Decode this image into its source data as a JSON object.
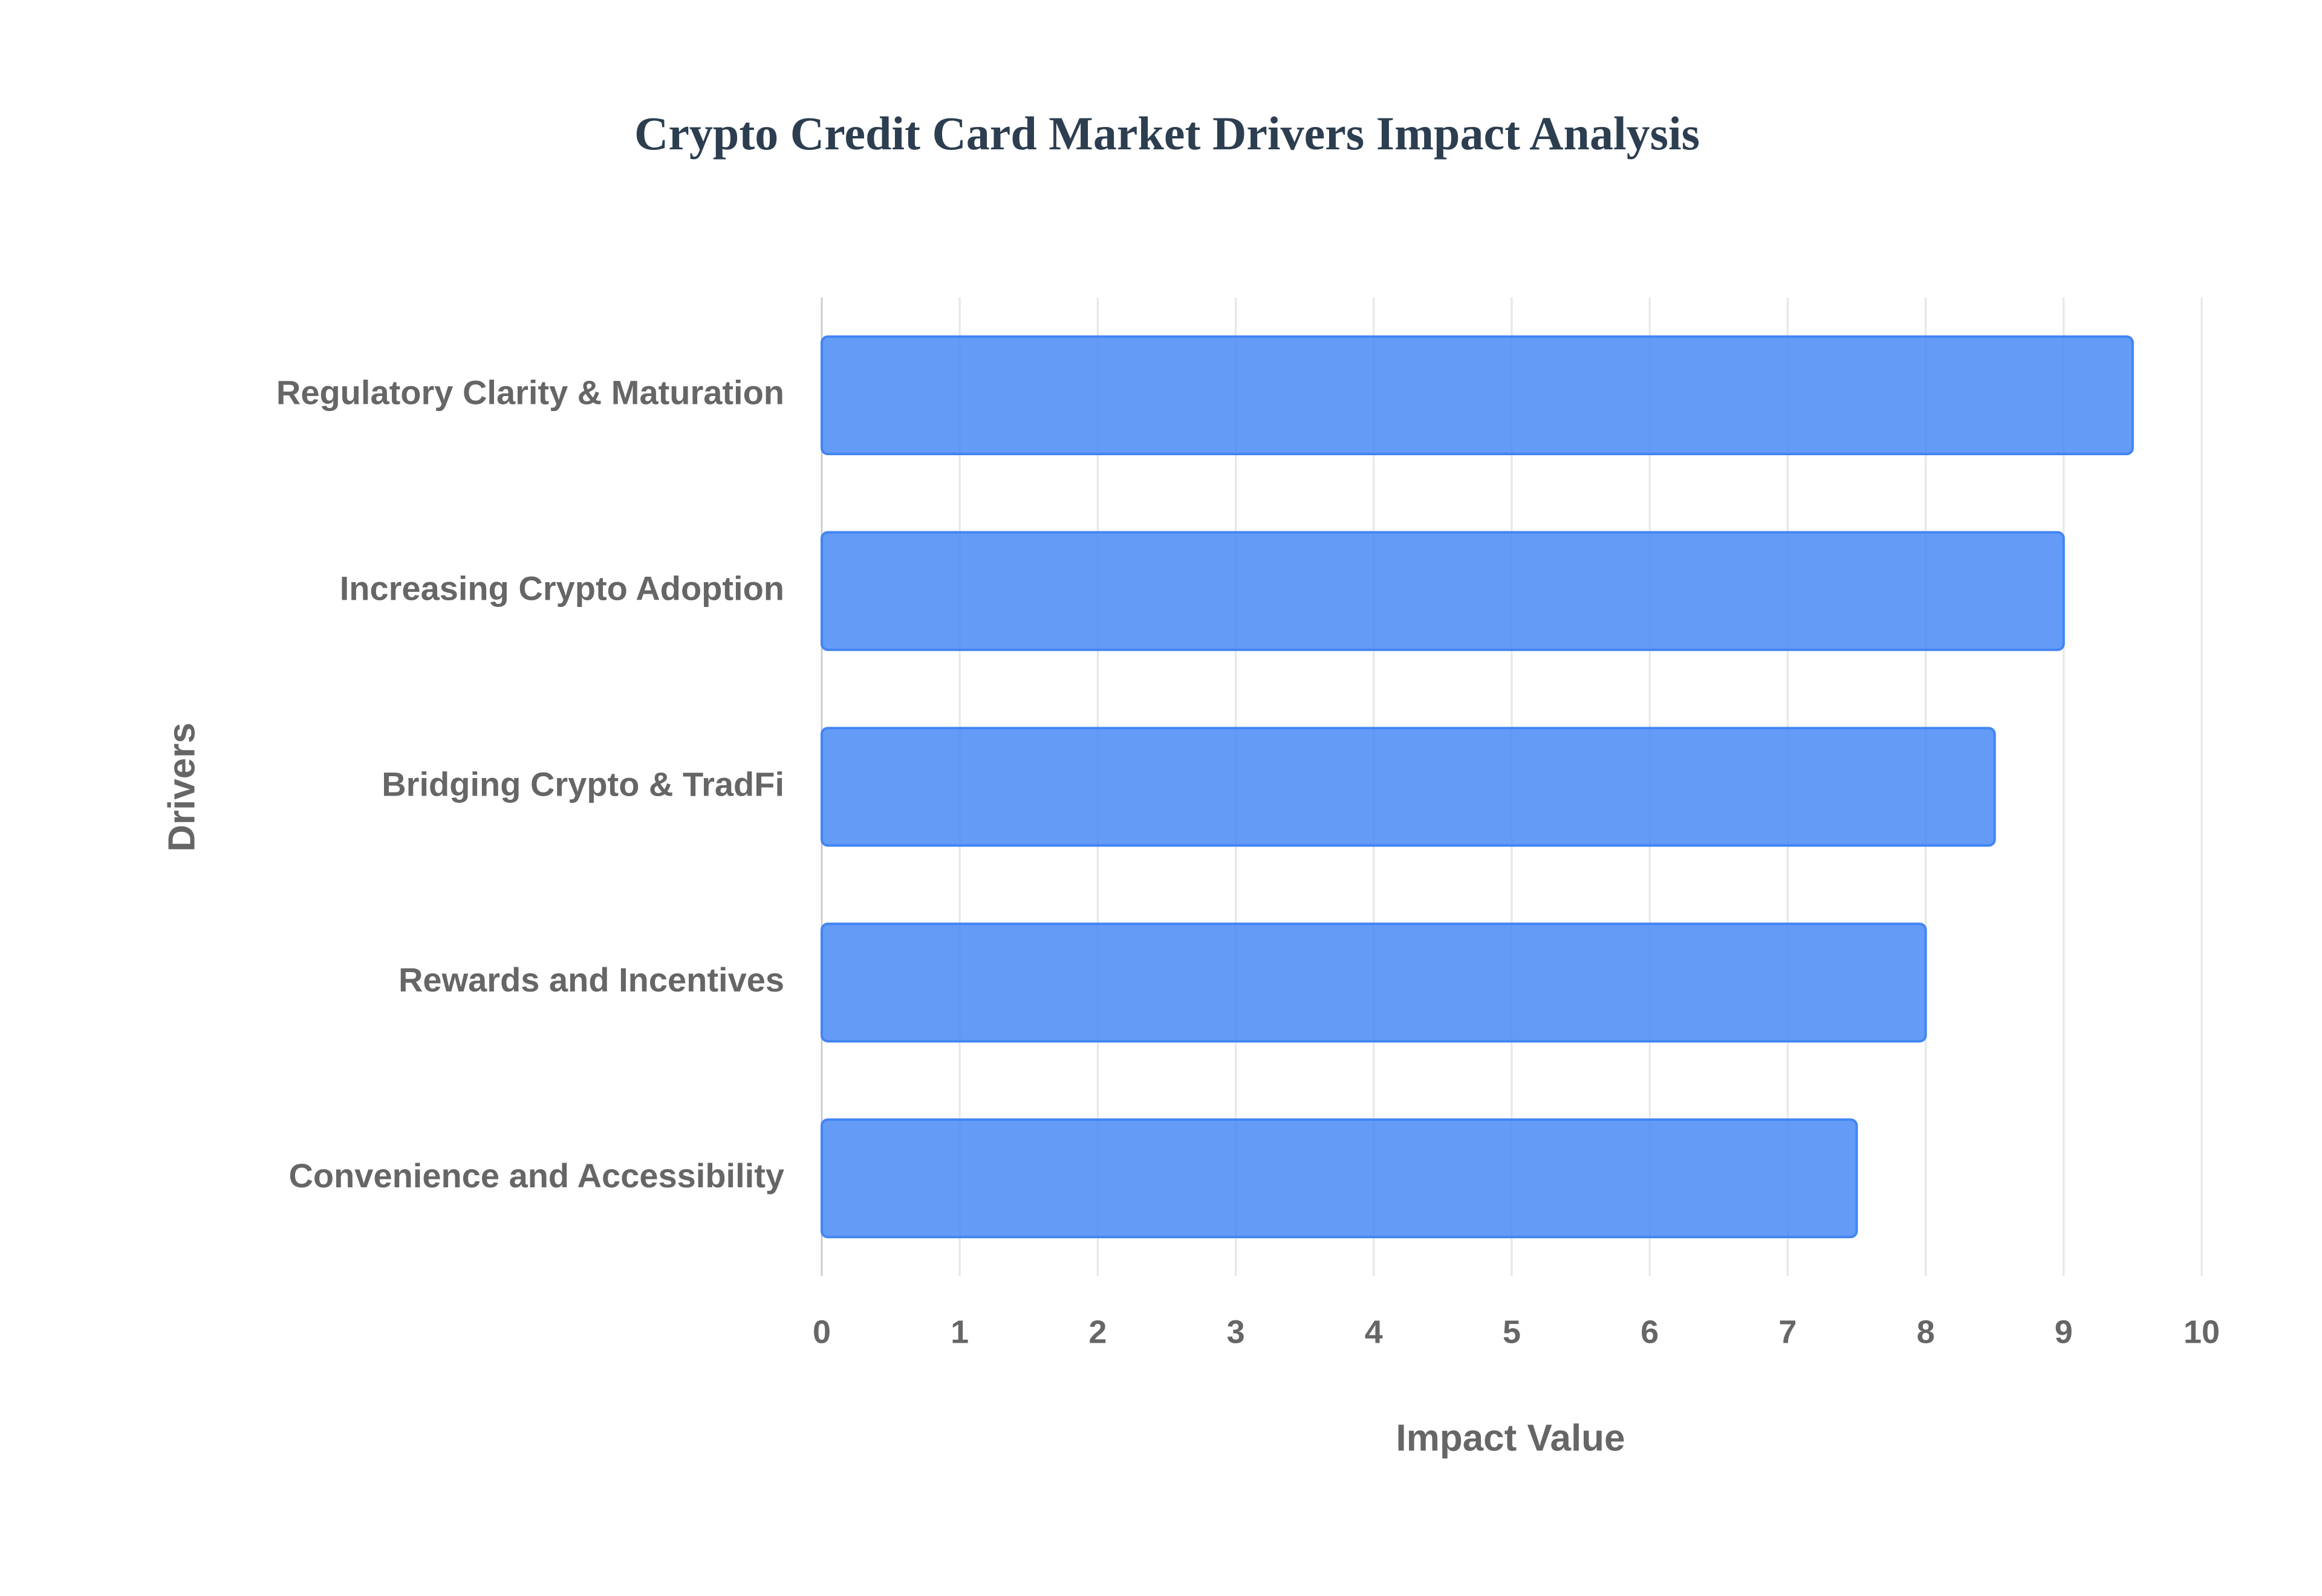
{
  "chart_data": {
    "type": "bar",
    "orientation": "horizontal",
    "title": "Crypto Credit Card Market Drivers Impact Analysis",
    "x_label": "Impact Value",
    "y_label": "Drivers",
    "categories": [
      "Regulatory Clarity & Maturation",
      "Increasing Crypto Adoption",
      "Bridging Crypto & TradFi",
      "Rewards and Incentives",
      "Convenience and Accessibility"
    ],
    "values": [
      9.5,
      9,
      8.5,
      8,
      7.5
    ],
    "color": "#4285f4",
    "xlim": [
      0,
      10
    ],
    "xticks": [
      0,
      1,
      2,
      3,
      4,
      5,
      6,
      7,
      8,
      9,
      10
    ],
    "grid": true
  }
}
